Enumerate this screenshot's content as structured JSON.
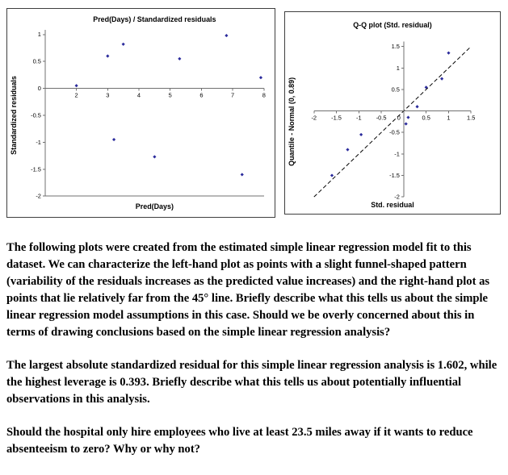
{
  "chart_data": [
    {
      "type": "scatter",
      "title": "Pred(Days) / Standardized residuals",
      "xlabel": "Pred(Days)",
      "ylabel": "Standardized residuals",
      "xlim": [
        1,
        8
      ],
      "ylim": [
        -2,
        1
      ],
      "x_ticks": [
        2,
        3,
        4,
        5,
        6,
        7,
        8
      ],
      "y_ticks": [
        1,
        0.5,
        0,
        -0.5,
        -1,
        -1.5,
        -2
      ],
      "points": [
        [
          2,
          0.05
        ],
        [
          3,
          0.6
        ],
        [
          3.2,
          -0.95
        ],
        [
          3.5,
          0.82
        ],
        [
          4.5,
          -1.27
        ],
        [
          5.3,
          0.55
        ],
        [
          6.8,
          0.98
        ],
        [
          7.3,
          -1.6
        ],
        [
          7.9,
          0.2
        ]
      ],
      "point_color": "#2b2b9c",
      "grid": false,
      "legend": "none"
    },
    {
      "type": "scatter",
      "title": "Q-Q plot (Std. residual)",
      "xlabel": "Std. residual",
      "ylabel": "Quantile - Normal (0, 0.89)",
      "xlim": [
        -2,
        1.5
      ],
      "ylim": [
        -2,
        1.5
      ],
      "x_ticks": [
        -2,
        -1.5,
        -1,
        -0.5,
        0,
        0.5,
        1,
        1.5
      ],
      "y_ticks": [
        1.5,
        1,
        0.5,
        -0.5,
        -1,
        -1.5,
        -2
      ],
      "points": [
        [
          -1.6,
          -1.5
        ],
        [
          -1.25,
          -0.9
        ],
        [
          -0.95,
          -0.55
        ],
        [
          0.05,
          -0.3
        ],
        [
          0.1,
          -0.15
        ],
        [
          0.3,
          0.1
        ],
        [
          0.5,
          0.55
        ],
        [
          0.85,
          0.75
        ],
        [
          1,
          1.35
        ]
      ],
      "reference_line": {
        "style": "dashed",
        "from": [
          -2,
          -2
        ],
        "to": [
          1.5,
          1.5
        ]
      },
      "point_color": "#2b2b9c",
      "grid": false,
      "legend": "none"
    }
  ],
  "questions": {
    "p1": "The following plots were created from the estimated simple linear regression model fit to this dataset.  We can characterize the left-hand plot as points with a slight funnel-shaped pattern (variability of the residuals increases as the predicted value increases) and the right-hand plot as points that lie relatively far from the 45° line. Briefly describe what this tells us about the simple linear regression model assumptions in this case. Should we be overly concerned about this in terms of drawing conclusions based on the simple linear regression analysis?",
    "p2": "The largest absolute standardized residual for this simple linear regression analysis is 1.602, while the highest leverage is 0.393. Briefly describe what this tells us about potentially influential observations in this analysis.",
    "p3": "Should the hospital only hire employees who live at least 23.5 miles away if it wants to reduce absenteeism to zero? Why or why not?"
  },
  "colors": {
    "point": "#2b2b9c",
    "axis": "#707070",
    "chart_border": "#3f3f3f",
    "text": "#000000",
    "background": "#ffffff"
  }
}
